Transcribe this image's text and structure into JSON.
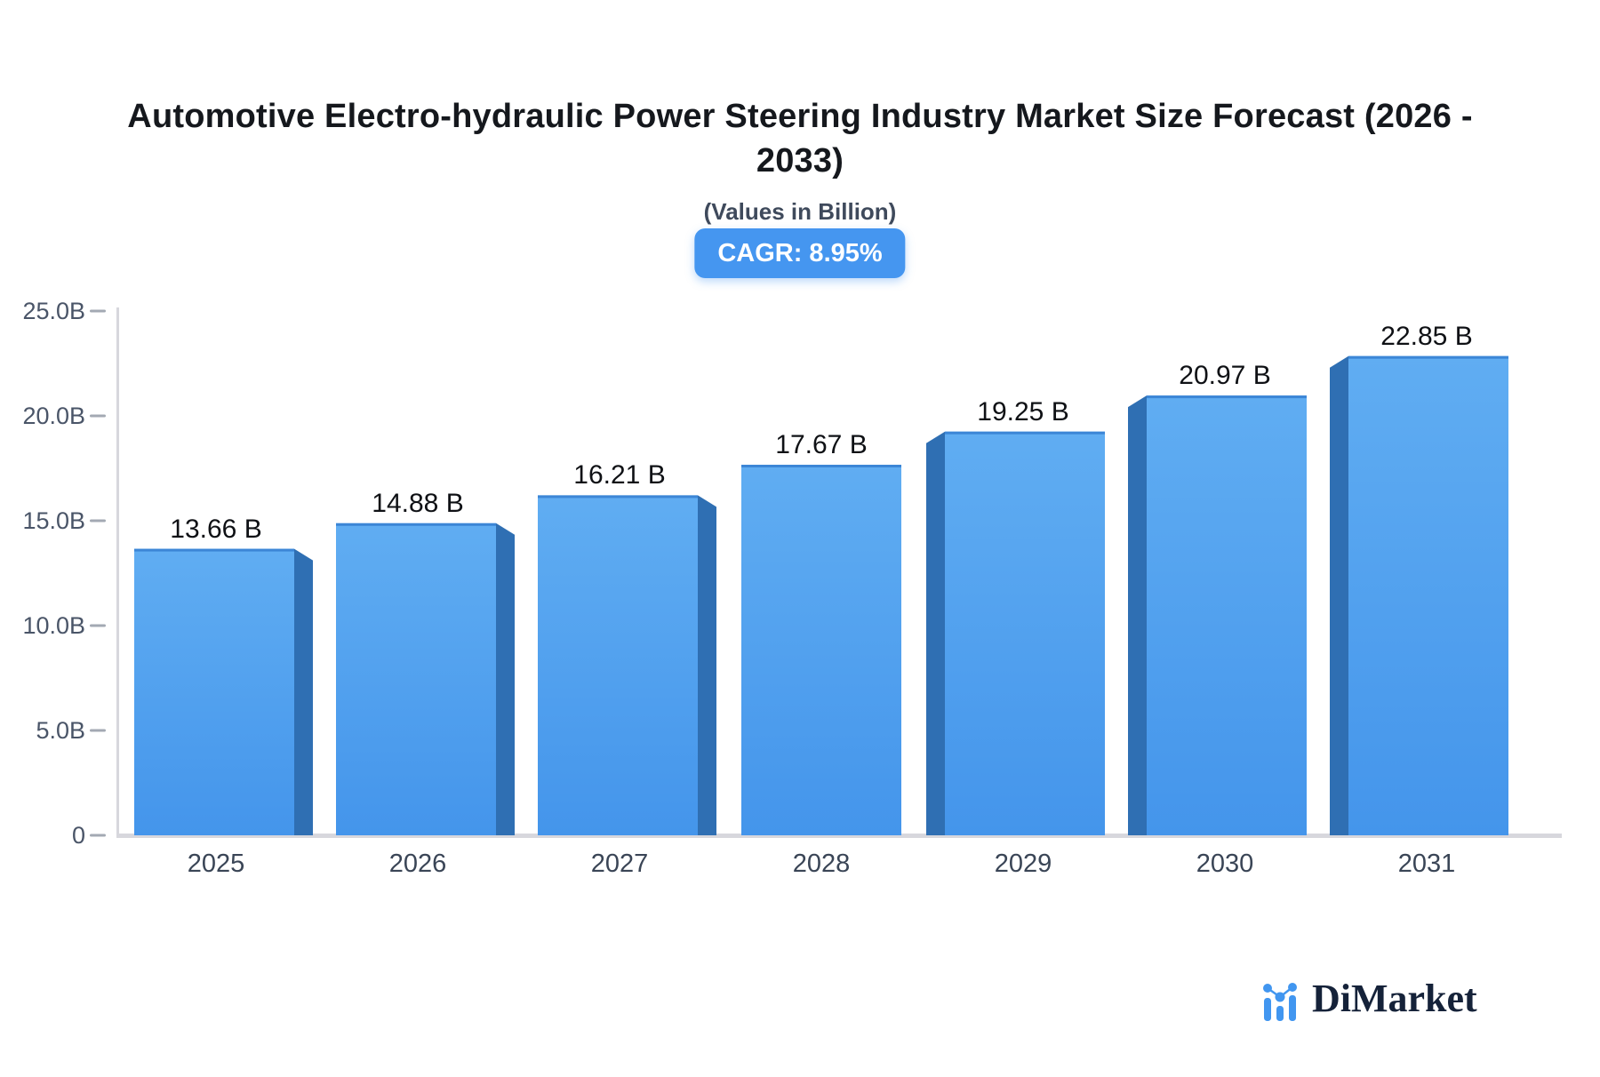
{
  "title_line1": "Automotive Electro-hydraulic Power Steering Industry Market Size Forecast (2026 -",
  "title_line2": "2033)",
  "subtitle": "(Values in Billion)",
  "cagr_badge": "CAGR: 8.95%",
  "watermark": {
    "brand": "DiMarket",
    "icon": "bar-chart-logo-icon"
  },
  "chart_data": {
    "type": "bar",
    "title": "Automotive Electro-hydraulic Power Steering Industry Market Size Forecast (2026 - 2033)",
    "subtitle": "(Values in Billion)",
    "cagr_percent": 8.95,
    "categories": [
      "2025",
      "2026",
      "2027",
      "2028",
      "2029",
      "2030",
      "2031"
    ],
    "values": [
      13.66,
      14.88,
      16.21,
      17.67,
      19.25,
      20.97,
      22.85
    ],
    "bar_labels": [
      "13.66 B",
      "14.88 B",
      "16.21 B",
      "17.67 B",
      "19.25 B",
      "20.97 B",
      "22.85 B"
    ],
    "unit": "Billion",
    "xlabel": "",
    "ylabel": "",
    "ylim": [
      0,
      25
    ],
    "y_ticks": [
      "25.0B",
      "20.0B",
      "15.0B",
      "10.0B",
      "5.0B",
      "0"
    ],
    "y_tick_values": [
      25,
      20,
      15,
      10,
      5,
      0
    ],
    "grid": false,
    "legend": "none",
    "colors": {
      "bar_face_top": "#60adf2",
      "bar_face_bottom": "#4495eb",
      "bar_side": "#2f6fb3",
      "bar_top_edge": "#3c86d6",
      "axis_line": "#d7d7dd",
      "tick_mark": "#a3a9b3",
      "y_label": "#4a5568",
      "x_label": "#3a4556",
      "value_label": "#0f1115",
      "badge_bg": "#4596f0",
      "badge_text": "#ffffff",
      "logo_blue": "#4196f0",
      "logo_text_color": "#152239"
    }
  }
}
